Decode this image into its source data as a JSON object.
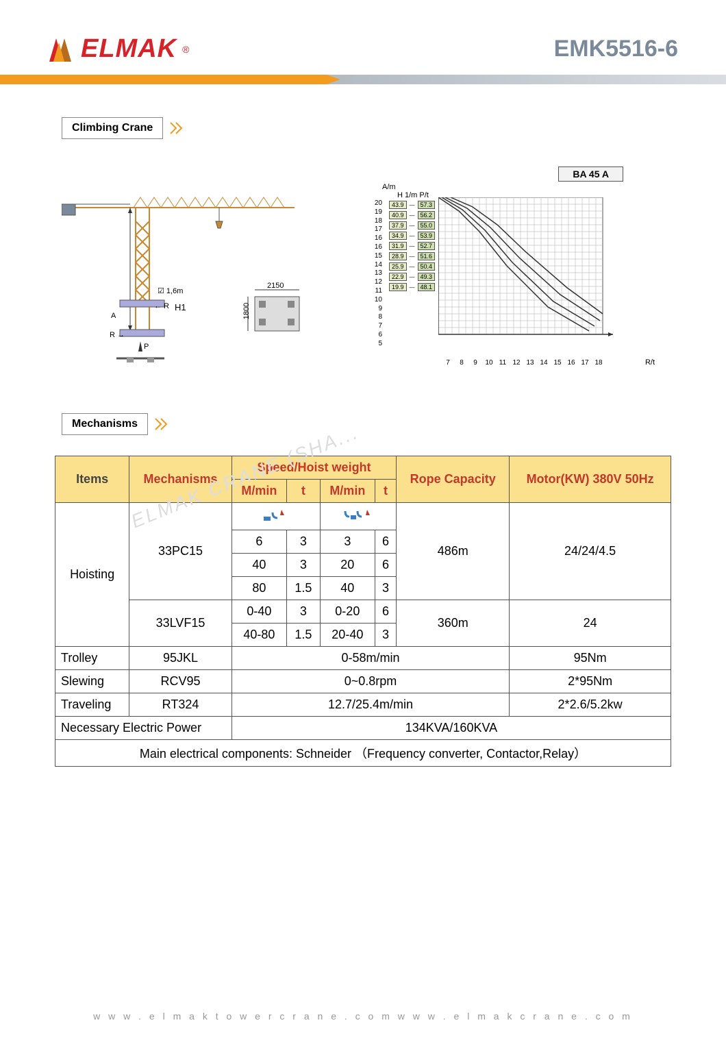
{
  "header": {
    "brand": "ELMAK",
    "model": "EMK5516-6"
  },
  "sections": {
    "climbing": "Climbing Crane",
    "mechanisms": "Mechanisms"
  },
  "crane_drawing": {
    "dim_width": "2150",
    "dim_height": "1800",
    "clearance": "☑ 1,6m",
    "labels": {
      "A": "A",
      "R": "R",
      "H1": "H1",
      "P": "P",
      "Rarrow": "← R"
    }
  },
  "chart": {
    "title": "BA 45 A",
    "axis_top": "A/m",
    "axis_sub": "H 1/m P/t",
    "axis_right": "R/t",
    "y_ticks": [
      "20",
      "19",
      "18",
      "17",
      "16",
      "16",
      "15",
      "14",
      "13",
      "12",
      "11",
      "10",
      "9",
      "8",
      "7",
      "6",
      "5"
    ],
    "x_ticks": [
      "7",
      "8",
      "9",
      "10",
      "11",
      "12",
      "13",
      "14",
      "15",
      "16",
      "17",
      "18"
    ],
    "pairs": [
      [
        "43.9",
        "57.3"
      ],
      [
        "40.9",
        "56.2"
      ],
      [
        "37.9",
        "55.0"
      ],
      [
        "34.9",
        "53.9"
      ],
      [
        "31.9",
        "52.7"
      ],
      [
        "28.9",
        "51.6"
      ],
      [
        "25.9",
        "50.4"
      ],
      [
        "22.9",
        "49.3"
      ],
      [
        "19.9",
        "48.1"
      ]
    ],
    "curves": [
      {
        "color": "#333",
        "points": [
          [
            0,
            0
          ],
          [
            30,
            20
          ],
          [
            60,
            50
          ],
          [
            100,
            100
          ],
          [
            160,
            160
          ],
          [
            220,
            195
          ]
        ]
      },
      {
        "color": "#333",
        "points": [
          [
            5,
            0
          ],
          [
            35,
            18
          ],
          [
            68,
            48
          ],
          [
            108,
            95
          ],
          [
            168,
            152
          ],
          [
            228,
            188
          ]
        ]
      },
      {
        "color": "#333",
        "points": [
          [
            10,
            0
          ],
          [
            42,
            16
          ],
          [
            76,
            44
          ],
          [
            118,
            88
          ],
          [
            178,
            142
          ],
          [
            236,
            180
          ]
        ]
      },
      {
        "color": "#333",
        "points": [
          [
            18,
            0
          ],
          [
            50,
            14
          ],
          [
            86,
            40
          ],
          [
            128,
            80
          ],
          [
            188,
            132
          ],
          [
            240,
            170
          ]
        ]
      }
    ]
  },
  "table": {
    "headers": {
      "items": "Items",
      "mechanisms": "Mechanisms",
      "speed": "Speed/Hoist weight",
      "mmin": "M/min",
      "t": "t",
      "rope": "Rope Capacity",
      "motor": "Motor(KW) 380V 50Hz"
    },
    "hoisting_label": "Hoisting",
    "mech1": "33PC15",
    "mech1_rows": [
      [
        "6",
        "3",
        "3",
        "6"
      ],
      [
        "40",
        "3",
        "20",
        "6"
      ],
      [
        "80",
        "1.5",
        "40",
        "3"
      ]
    ],
    "mech1_rope": "486m",
    "mech1_motor": "24/24/4.5",
    "mech2": "33LVF15",
    "mech2_rows": [
      [
        "0-40",
        "3",
        "0-20",
        "6"
      ],
      [
        "40-80",
        "1.5",
        "20-40",
        "3"
      ]
    ],
    "mech2_rope": "360m",
    "mech2_motor": "24",
    "trolley": {
      "label": "Trolley",
      "mech": "95JKL",
      "speed": "0-58m/min",
      "motor": "95Nm"
    },
    "slewing": {
      "label": "Slewing",
      "mech": "RCV95",
      "speed": "0~0.8rpm",
      "motor": "2*95Nm"
    },
    "traveling": {
      "label": "Traveling",
      "mech": "RT324",
      "speed": "12.7/25.4m/min",
      "motor": "2*2.6/5.2kw"
    },
    "power": {
      "label": "Necessary Electric Power",
      "value": "134KVA/160KVA"
    },
    "footer": "Main electrical components: Schneider （Frequency converter, Contactor,Relay）"
  },
  "footer_urls": "w w w . e l m a k t o w e r c r a n e . c o m     w w w . e l m a k c r a n e . c o m"
}
